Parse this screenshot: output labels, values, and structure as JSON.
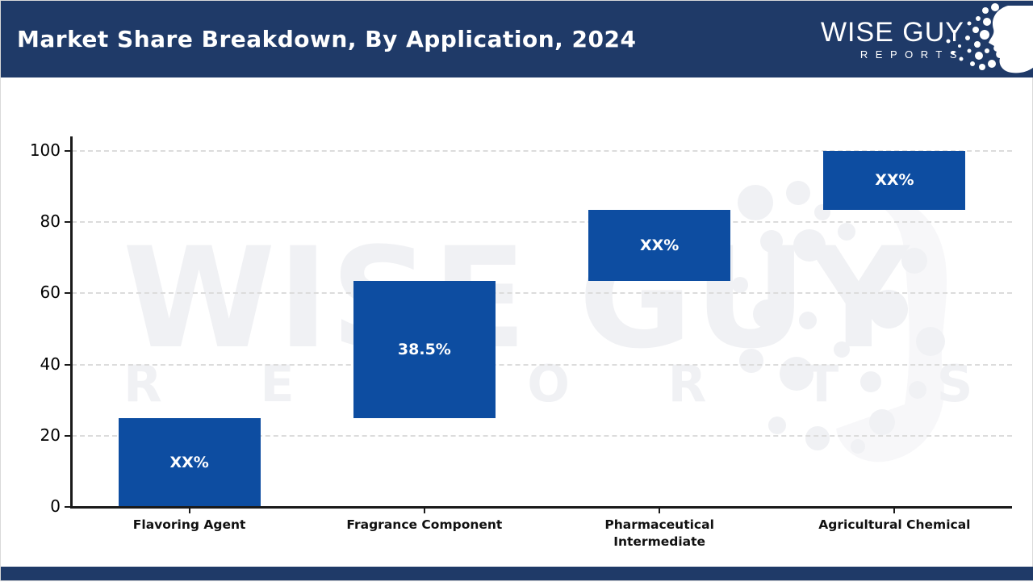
{
  "header": {
    "title": "Market Share Breakdown, By Application, 2024"
  },
  "logo": {
    "line1": "WISE GUY",
    "line2": "REPORTS"
  },
  "watermark": {
    "line1": "WISE GUY",
    "line2": "R E P O R T S"
  },
  "colors": {
    "header_bg": "#1f3a68",
    "bar": "#0d4da1",
    "grid": "#dcdcdc",
    "axis": "#1a1a1a",
    "watermark": "#f0f1f4"
  },
  "chart_data": {
    "type": "bar",
    "subtype": "waterfall-floating-segments",
    "title": "Market Share Breakdown, By Application, 2024",
    "categories": [
      "Flavoring Agent",
      "Fragrance Component",
      "Pharmaceutical Intermediate",
      "Agricultural Chemical"
    ],
    "segments": [
      {
        "category": "Flavoring Agent",
        "start": 0,
        "end": 25,
        "label": "XX%"
      },
      {
        "category": "Fragrance Component",
        "start": 25,
        "end": 63.5,
        "label": "38.5%"
      },
      {
        "category": "Pharmaceutical Intermediate",
        "start": 63.5,
        "end": 83.5,
        "label": "XX%"
      },
      {
        "category": "Agricultural Chemical",
        "start": 83.5,
        "end": 100,
        "label": "XX%"
      }
    ],
    "yticks": [
      0,
      20,
      40,
      60,
      80,
      100
    ],
    "ylim": [
      0,
      100
    ],
    "xlabel": "",
    "ylabel": "",
    "grid": "horizontal-dashed",
    "legend": "none"
  }
}
